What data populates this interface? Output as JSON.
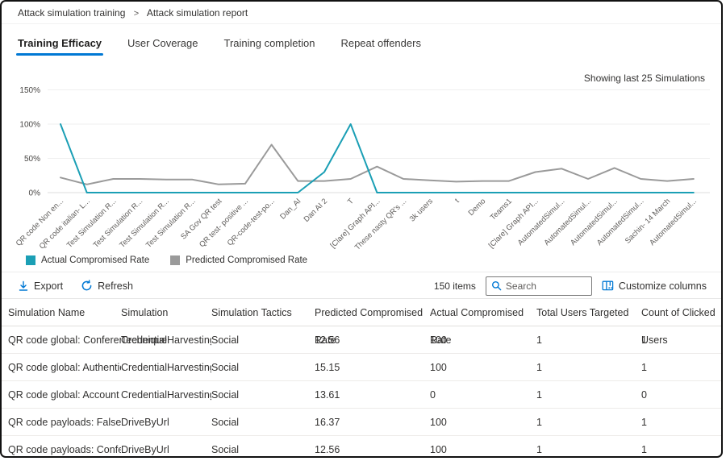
{
  "breadcrumb": {
    "separator": ">",
    "items": [
      "Attack simulation training",
      "Attack simulation report"
    ]
  },
  "tabs": [
    {
      "label": "Training Efficacy",
      "active": true
    },
    {
      "label": "User Coverage",
      "active": false
    },
    {
      "label": "Training completion",
      "active": false
    },
    {
      "label": "Repeat offenders",
      "active": false
    }
  ],
  "chart_header": "Showing last 25 Simulations",
  "chart_data": {
    "type": "line",
    "title": "",
    "xlabel": "",
    "ylabel": "",
    "ylim": [
      0,
      150
    ],
    "yticks": [
      "0%",
      "50%",
      "100%",
      "150%"
    ],
    "ytick_values": [
      0,
      50,
      100,
      150
    ],
    "grid": true,
    "legend_position": "bottom-left",
    "categories": [
      "QR code Non en...",
      "QR code italian- L...",
      "Test Simulation R...",
      "Test Simulation R...",
      "Test Simulation R...",
      "Test Simulation R...",
      "SA Gov QR test",
      "QR test- positive ...",
      "QR-code-test-po...",
      "Dan_AI",
      "Dan AI 2",
      "T",
      "[Clare] Graph API...",
      "These nasty QR's ...",
      "3k users",
      "t",
      "Demo",
      "Teams1",
      "[Clare] Graph API...",
      "AutomatedSimul...",
      "AutomatedSimul...",
      "AutomatedSimul...",
      "AutomatedSimul...",
      "Sachin- 14 March",
      "AutomatedSimul..."
    ],
    "series": [
      {
        "name": "Predicted Compromised Rate",
        "color": "#9a9a9a",
        "values": [
          22,
          12,
          20,
          20,
          19,
          19,
          12,
          13,
          70,
          17,
          17,
          20,
          38,
          20,
          18,
          16,
          17,
          17,
          30,
          35,
          20,
          36,
          20,
          17,
          20
        ]
      },
      {
        "name": "Actual Compromised Rate",
        "color": "#1b9fb5",
        "values": [
          100,
          0,
          0,
          0,
          0,
          0,
          0,
          0,
          0,
          0,
          30,
          100,
          0,
          0,
          0,
          0,
          0,
          0,
          0,
          0,
          0,
          0,
          0,
          0,
          0
        ]
      }
    ]
  },
  "legend": {
    "actual": "Actual Compromised Rate",
    "predicted": "Predicted Compromised Rate"
  },
  "toolbar": {
    "export_label": "Export",
    "refresh_label": "Refresh",
    "items_count": "150 items",
    "search_placeholder": "Search",
    "customize_label": "Customize columns"
  },
  "table": {
    "columns": [
      "Simulation Name",
      "Simulation Technique",
      "Simulation Tactics",
      "Predicted Compromised Rate",
      "Actual Compromised Rate",
      "Total Users Targeted",
      "Count of Clicked Users"
    ],
    "rows": [
      [
        "QR code global: Conferenc...",
        "CredentialHarvesting",
        "Social",
        "12.56",
        "100",
        "1",
        "1"
      ],
      [
        "QR code global: Authentic...",
        "CredentialHarvesting",
        "Social",
        "15.15",
        "100",
        "1",
        "1"
      ],
      [
        "QR code global: Account S...",
        "CredentialHarvesting",
        "Social",
        "13.61",
        "0",
        "1",
        "0"
      ],
      [
        "QR code payloads: False Ch...",
        "DriveByUrl",
        "Social",
        "16.37",
        "100",
        "1",
        "1"
      ],
      [
        "QR code payloads: Confere...",
        "DriveByUrl",
        "Social",
        "12.56",
        "100",
        "1",
        "1"
      ]
    ]
  },
  "colors": {
    "accent": "#0078d4",
    "actual": "#1b9fb5",
    "predicted": "#9a9a9a",
    "gridline": "#efefef"
  }
}
